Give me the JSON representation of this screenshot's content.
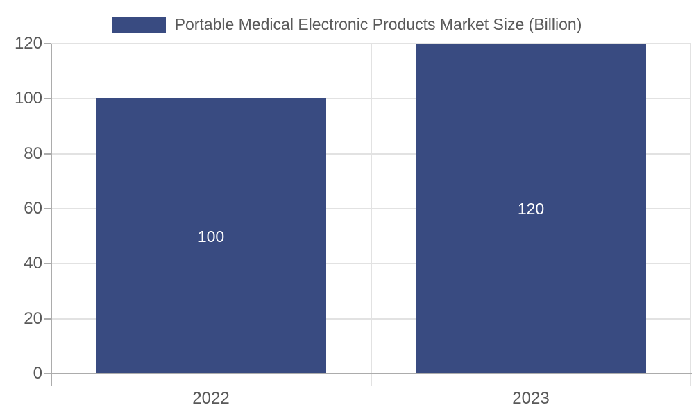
{
  "legend": {
    "label": "Portable Medical Electronic Products Market Size (Billion)"
  },
  "colors": {
    "background": "#ffffff",
    "bar": "#394B81",
    "text": "#595959",
    "grid": "#E2E2E2",
    "axis": "#ACACAC",
    "value_text": "#ffffff"
  },
  "chart_data": {
    "type": "bar",
    "title": "Portable Medical Electronic Products Market Size (Billion)",
    "categories": [
      "2022",
      "2023"
    ],
    "series": [
      {
        "name": "Portable Medical Electronic Products Market Size (Billion)",
        "values": [
          100,
          120
        ]
      }
    ],
    "bar_labels": [
      "100",
      "120"
    ],
    "yticks": [
      0,
      20,
      40,
      60,
      80,
      100,
      120
    ],
    "ylim": [
      0,
      120
    ],
    "xlabel": "",
    "ylabel": "",
    "grid": true,
    "legend_position": "top-center"
  }
}
